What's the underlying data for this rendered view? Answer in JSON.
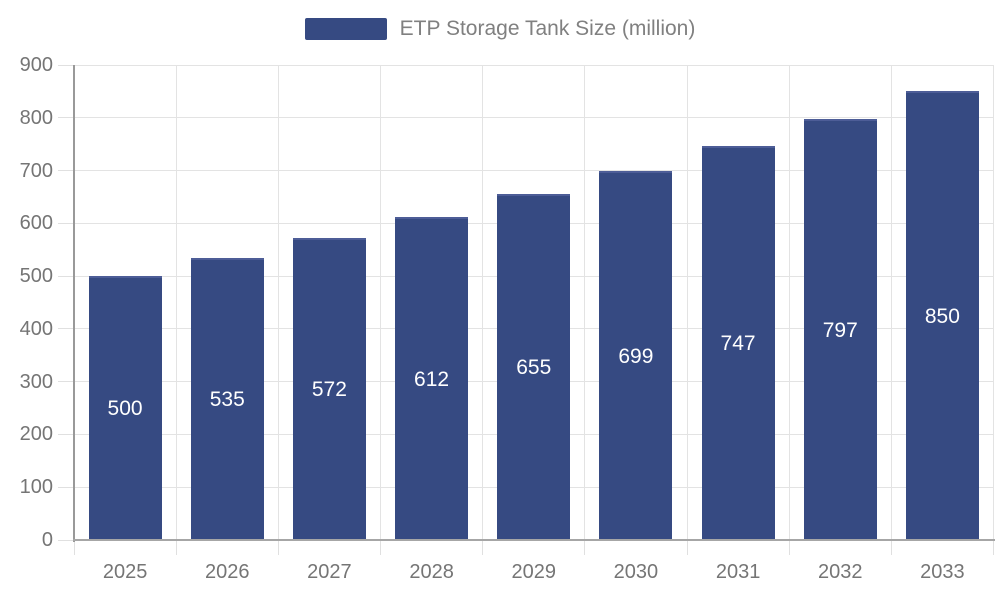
{
  "legend": {
    "label": "ETP Storage Tank Size (million)"
  },
  "colors": {
    "bar": "#364a82",
    "bar_edge": "#4d5d97",
    "grid": "#e3e3e3",
    "tick": "#e0e0e0",
    "axis": "#999999",
    "axis_label": "#757575",
    "legend_text": "#808080",
    "value_label": "#ffffff",
    "background": "#ffffff"
  },
  "chart_data": {
    "type": "bar",
    "title": "ETP Storage Tank Size (million)",
    "categories": [
      "2025",
      "2026",
      "2027",
      "2028",
      "2029",
      "2030",
      "2031",
      "2032",
      "2033"
    ],
    "series": [
      {
        "name": "ETP Storage Tank Size (million)",
        "values": [
          500,
          535,
          572,
          612,
          655,
          699,
          747,
          797,
          850
        ]
      }
    ],
    "xlabel": "",
    "ylabel": "",
    "ylim": [
      0,
      900
    ],
    "yticks": [
      0,
      100,
      200,
      300,
      400,
      500,
      600,
      700,
      800,
      900
    ],
    "grid": true,
    "legend_position": "top",
    "value_label_position": "inside-center"
  }
}
